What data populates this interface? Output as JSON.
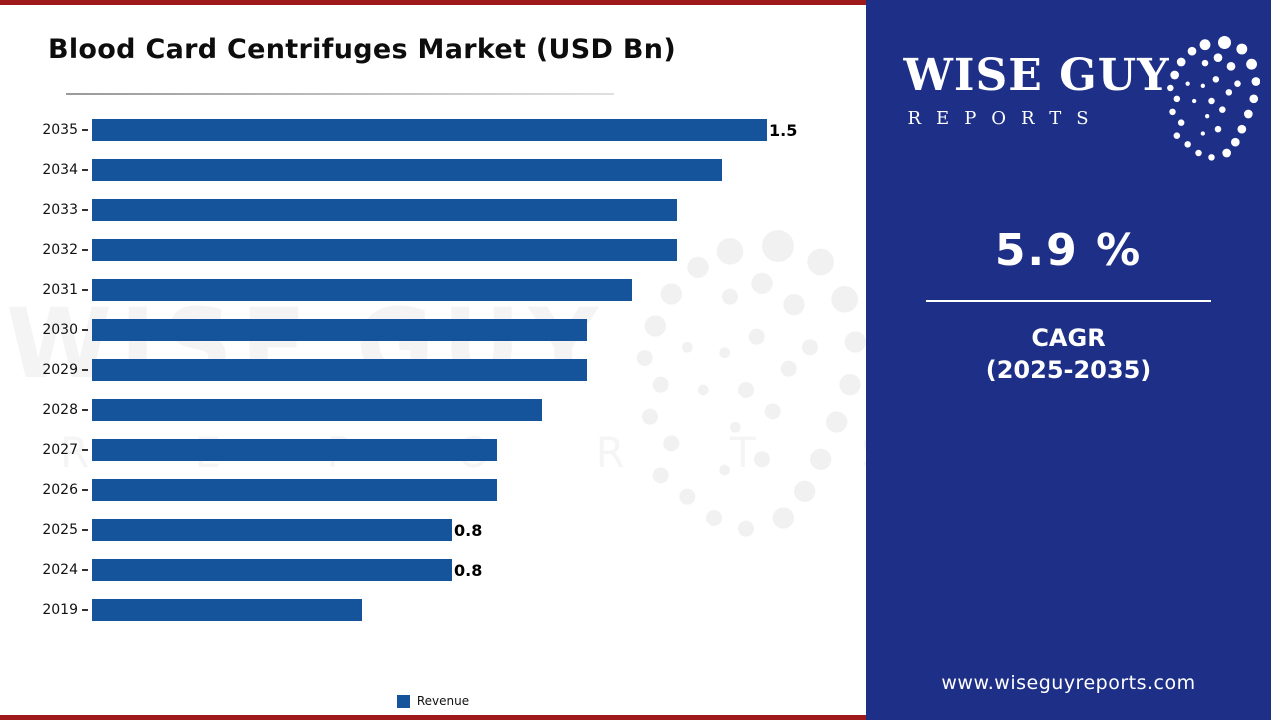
{
  "colors": {
    "bar_blue": "#15549a",
    "panel_bg": "#1e2f87",
    "border_red": "#9e1a1a"
  },
  "chart_data": {
    "type": "bar",
    "orientation": "horizontal",
    "title": "Blood Card Centrifuges Market (USD Bn)",
    "xlabel": "",
    "ylabel": "",
    "xlim": [
      0,
      1.6
    ],
    "grid": false,
    "legend_position": "bottom-center",
    "legend": [
      "Revenue"
    ],
    "bar_color": "#15549a",
    "categories": [
      "2035",
      "2034",
      "2033",
      "2032",
      "2031",
      "2030",
      "2029",
      "2028",
      "2027",
      "2026",
      "2025",
      "2024",
      "2019"
    ],
    "values": [
      1.5,
      1.4,
      1.3,
      1.3,
      1.2,
      1.1,
      1.1,
      1.0,
      0.9,
      0.9,
      0.8,
      0.8,
      0.6
    ],
    "bars": [
      {
        "year": "2035",
        "value": 1.5,
        "label": "1.5"
      },
      {
        "year": "2034",
        "value": 1.4,
        "label": ""
      },
      {
        "year": "2033",
        "value": 1.3,
        "label": ""
      },
      {
        "year": "2032",
        "value": 1.3,
        "label": ""
      },
      {
        "year": "2031",
        "value": 1.2,
        "label": ""
      },
      {
        "year": "2030",
        "value": 1.1,
        "label": ""
      },
      {
        "year": "2029",
        "value": 1.1,
        "label": ""
      },
      {
        "year": "2028",
        "value": 1.0,
        "label": ""
      },
      {
        "year": "2027",
        "value": 0.9,
        "label": ""
      },
      {
        "year": "2026",
        "value": 0.9,
        "label": ""
      },
      {
        "year": "2025",
        "value": 0.8,
        "label": "0.8"
      },
      {
        "year": "2024",
        "value": 0.8,
        "label": "0.8"
      },
      {
        "year": "2019",
        "value": 0.6,
        "label": ""
      }
    ]
  },
  "legend": {
    "revenue_label": "Revenue"
  },
  "watermark": {
    "line1": "WISE GUY",
    "line2": "R E P O R T S"
  },
  "panel": {
    "logo_line1": "WISE GUY",
    "logo_line2": "REPORTS",
    "cagr_value": "5.9 %",
    "cagr_label_line1": "CAGR",
    "cagr_label_line2": "(2025-2035)",
    "website": "www.wiseguyreports.com"
  }
}
